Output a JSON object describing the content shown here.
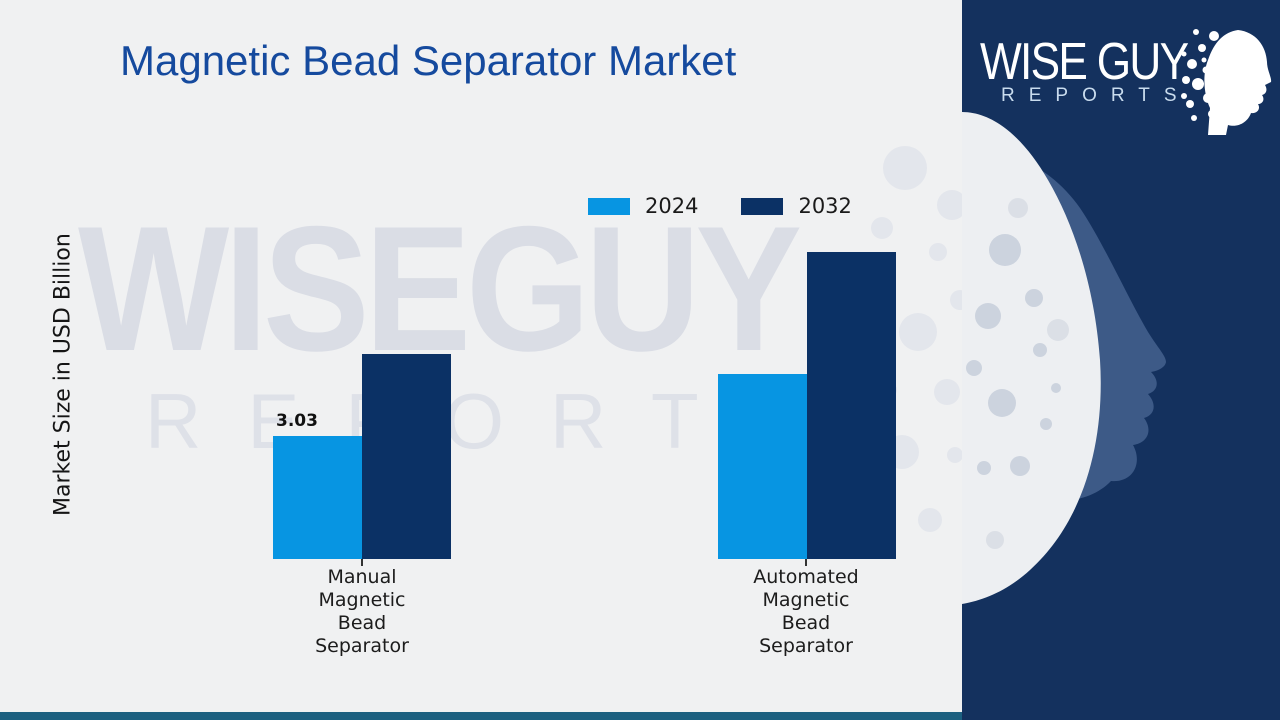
{
  "page": {
    "background_color": "#f0f1f2"
  },
  "title": {
    "text": "Magnetic Bead Separator Market",
    "color": "#154a9e"
  },
  "watermark": {
    "word1": "WISEGUY",
    "word2": "REPORTS"
  },
  "brand": {
    "panel_color": "#14315e",
    "accent_strip_color": "#1c6080",
    "logo_name": "WISE GUY",
    "logo_subtitle": "REPORTS"
  },
  "chart_data": {
    "type": "bar",
    "title": "Magnetic Bead Separator Market",
    "xlabel": "",
    "ylabel": "Market Size in USD Billion",
    "units": "USD Billion",
    "grid": false,
    "legend_position": "top",
    "categories": [
      "Manual\nMagnetic\nBead\nSeparator",
      "Automated\nMagnetic\nBead\nSeparator"
    ],
    "series": [
      {
        "name": "2024",
        "color": "#0795e2",
        "values": [
          3.03,
          4.55
        ]
      },
      {
        "name": "2032",
        "color": "#0b3165",
        "values": [
          5.05,
          7.55
        ]
      }
    ],
    "value_labels": [
      [
        "3.03",
        ""
      ],
      [
        "",
        ""
      ]
    ],
    "ylim": [
      0,
      8.3
    ]
  }
}
